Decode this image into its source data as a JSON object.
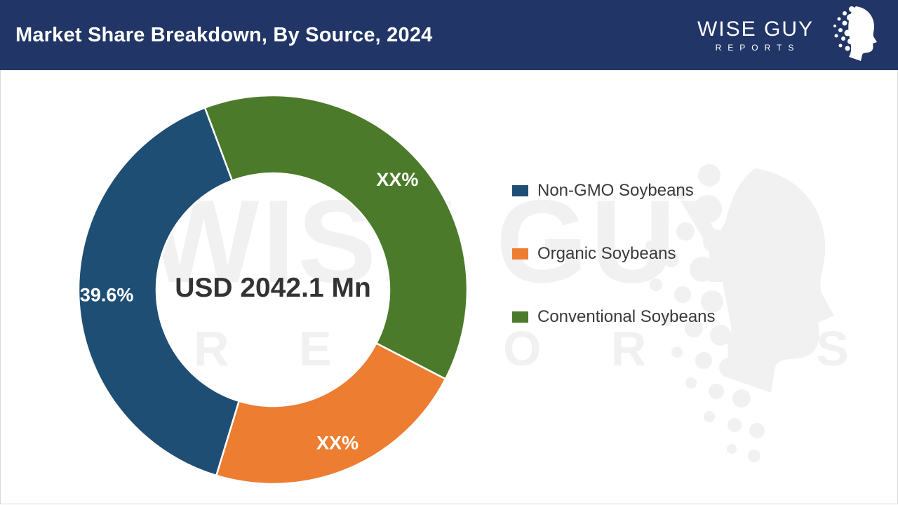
{
  "header": {
    "title": "Market Share Breakdown, By Source, 2024",
    "logo_line1": "WISE GUY",
    "logo_line2": "REPORTS"
  },
  "watermark": {
    "line1": "WISE GUY",
    "line2": "R E P O R T S"
  },
  "legend": {
    "position": "right",
    "items": [
      {
        "label": "Non-GMO Soybeans",
        "color": "#1F4E74"
      },
      {
        "label": "Organic Soybeans",
        "color": "#ED7D31"
      },
      {
        "label": "Conventional Soybeans",
        "color": "#4B7A2B"
      }
    ]
  },
  "chart_data": {
    "type": "pie",
    "subtype": "donut",
    "title": "Market Share Breakdown, By Source, 2024",
    "center_label": "USD 2042.1 Mn",
    "start_angle_deg": -20.5,
    "inner_radius_ratio": 0.6,
    "legend_position": "right",
    "slices": [
      {
        "name": "Conventional Soybeans",
        "label": "XX%",
        "value_pct": 38.3,
        "color": "#4B7A2B",
        "estimated": true
      },
      {
        "name": "Organic Soybeans",
        "label": "XX%",
        "value_pct": 22.1,
        "color": "#ED7D31",
        "estimated": true
      },
      {
        "name": "Non-GMO Soybeans",
        "label": "39.6%",
        "value_pct": 39.6,
        "color": "#1F4E74",
        "estimated": false
      }
    ]
  }
}
